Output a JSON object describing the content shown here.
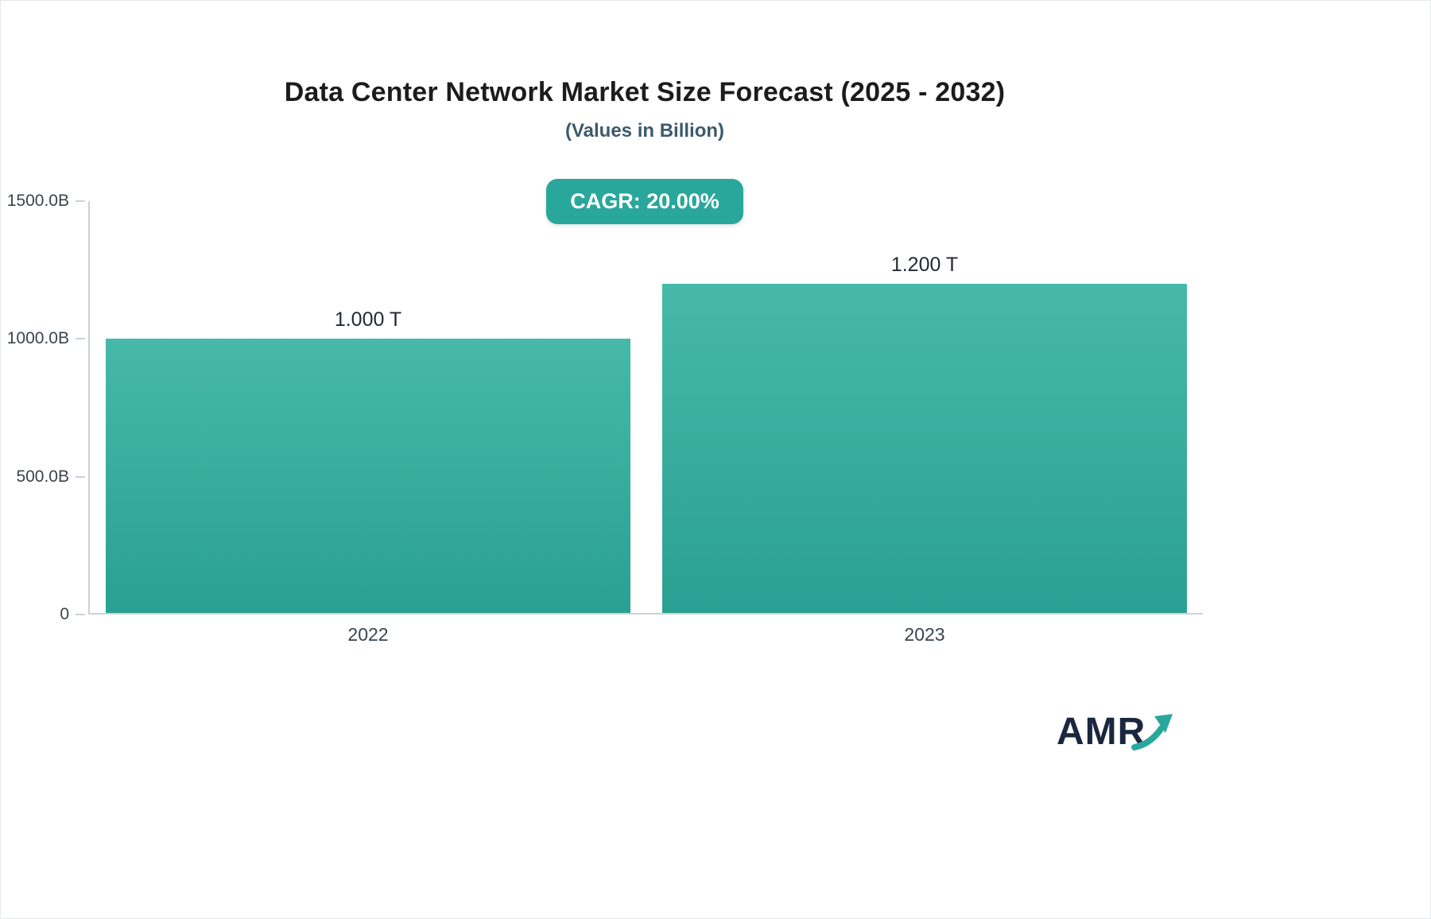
{
  "chart_data": {
    "type": "bar",
    "title": "Data Center Network Market Size Forecast (2025 - 2032)",
    "subtitle": "(Values in Billion)",
    "cagr_label": "CAGR: 20.00%",
    "cagr_percent": 20.0,
    "unit": "Billion",
    "categories": [
      "2022",
      "2023"
    ],
    "values": [
      1000,
      1200
    ],
    "value_labels": [
      "1.000 T",
      "1.200 T"
    ],
    "ylim": [
      0,
      1500
    ],
    "yticks": [
      {
        "label": "1500.0B",
        "value": 1500
      },
      {
        "label": "1000.0B",
        "value": 1000
      },
      {
        "label": "500.0B",
        "value": 500
      },
      {
        "label": "0",
        "value": 0
      }
    ],
    "grid": false,
    "legend": "none",
    "colors": {
      "bar_top": "#46b9a9",
      "bar_bottom": "#2aa093",
      "badge_bg": "#2aa79b",
      "title_text": "#1c1c1c",
      "subtitle_text": "#3d5a6c",
      "axis_line": "#cdd2d8",
      "tick_text": "#3c434b",
      "logo_text": "#1b2740",
      "logo_arrow": "#2aa79b"
    }
  },
  "logo": {
    "text": "AMR"
  }
}
